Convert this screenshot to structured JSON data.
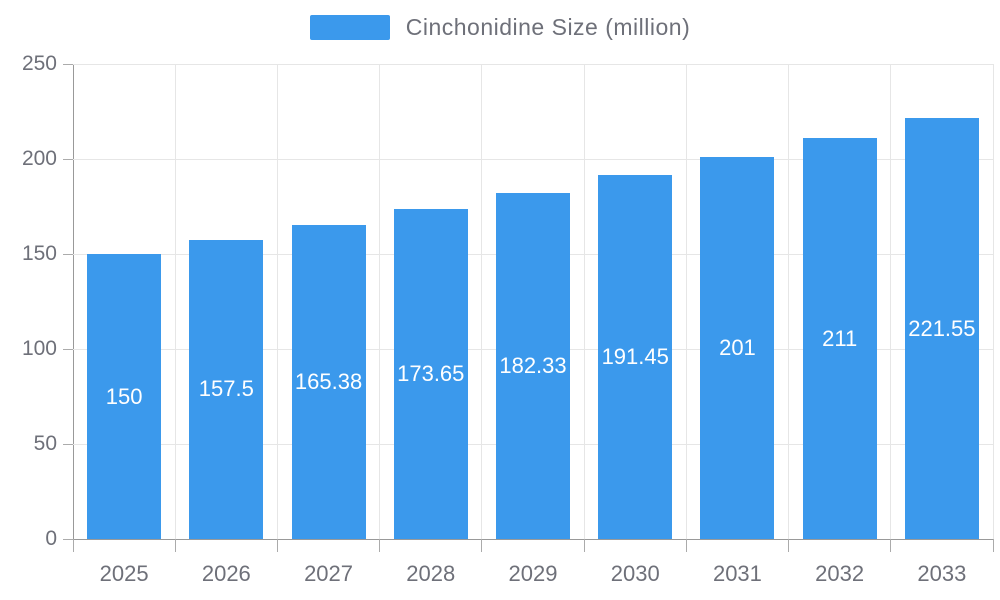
{
  "chart_data": {
    "type": "bar",
    "title": "Cinchonidine Size (million)",
    "legend": {
      "label": "Cinchonidine Size (million)",
      "position": "top-center"
    },
    "categories": [
      "2025",
      "2026",
      "2027",
      "2028",
      "2029",
      "2030",
      "2031",
      "2032",
      "2033"
    ],
    "values": [
      150,
      157.5,
      165.38,
      173.65,
      182.33,
      191.45,
      201,
      211,
      221.55
    ],
    "value_labels": [
      "150",
      "157.5",
      "165.38",
      "173.65",
      "182.33",
      "191.45",
      "201",
      "211",
      "221.55"
    ],
    "xlabel": "",
    "ylabel": "",
    "ylim": [
      0,
      250
    ],
    "yticks": [
      0,
      50,
      100,
      150,
      200,
      250
    ],
    "grid": true,
    "colors": {
      "bar": "#3B99EC",
      "bar_label_text": "#FFFFFF",
      "axis_line": "#999999",
      "tick": "#ABABAB",
      "gridline": "#E6E6E6",
      "axis_text": "#6E7079",
      "legend_text": "#6E7079",
      "background": "#FFFFFF"
    }
  }
}
